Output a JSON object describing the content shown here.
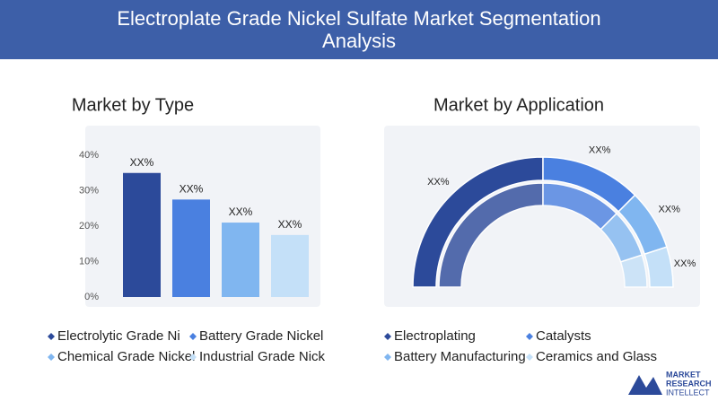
{
  "header": {
    "title": [
      "Electroplate Grade Nickel Sulfate Market Segmentation",
      "Analysis"
    ]
  },
  "chart_data": [
    {
      "type": "bar",
      "title": "Market by Type",
      "categories": [
        "Electrolytic Grade Ni",
        "Battery Grade Nickel",
        "Chemical Grade Nickel",
        "Industrial Grade Nick"
      ],
      "values": [
        35,
        27.5,
        21,
        17.5
      ],
      "value_labels": [
        "XX%",
        "XX%",
        "XX%",
        "XX%"
      ],
      "colors": [
        "#2c4a9a",
        "#4a80e0",
        "#80b6f0",
        "#c4e0f8"
      ],
      "ylim": [
        0,
        40
      ],
      "yticks": [
        {
          "value": 0,
          "label": "0%"
        },
        {
          "value": 10,
          "label": "10%"
        },
        {
          "value": 20,
          "label": "20%"
        },
        {
          "value": 30,
          "label": "30%"
        },
        {
          "value": 40,
          "label": "40%"
        }
      ]
    },
    {
      "type": "pie",
      "title": "Market by Application",
      "categories": [
        "Electroplating",
        "Catalysts",
        "Battery Manufacturing",
        "Ceramics and Glass"
      ],
      "values": [
        50,
        25,
        15,
        10
      ],
      "value_labels": [
        "XX%",
        "XX%",
        "XX%",
        "XX%"
      ],
      "colors": [
        "#2c4a9a",
        "#4a80e0",
        "#80b6f0",
        "#c4e0f8"
      ]
    }
  ],
  "logo": {
    "lines": [
      "MARKET",
      "RESEARCH",
      "INTELLECT"
    ]
  }
}
